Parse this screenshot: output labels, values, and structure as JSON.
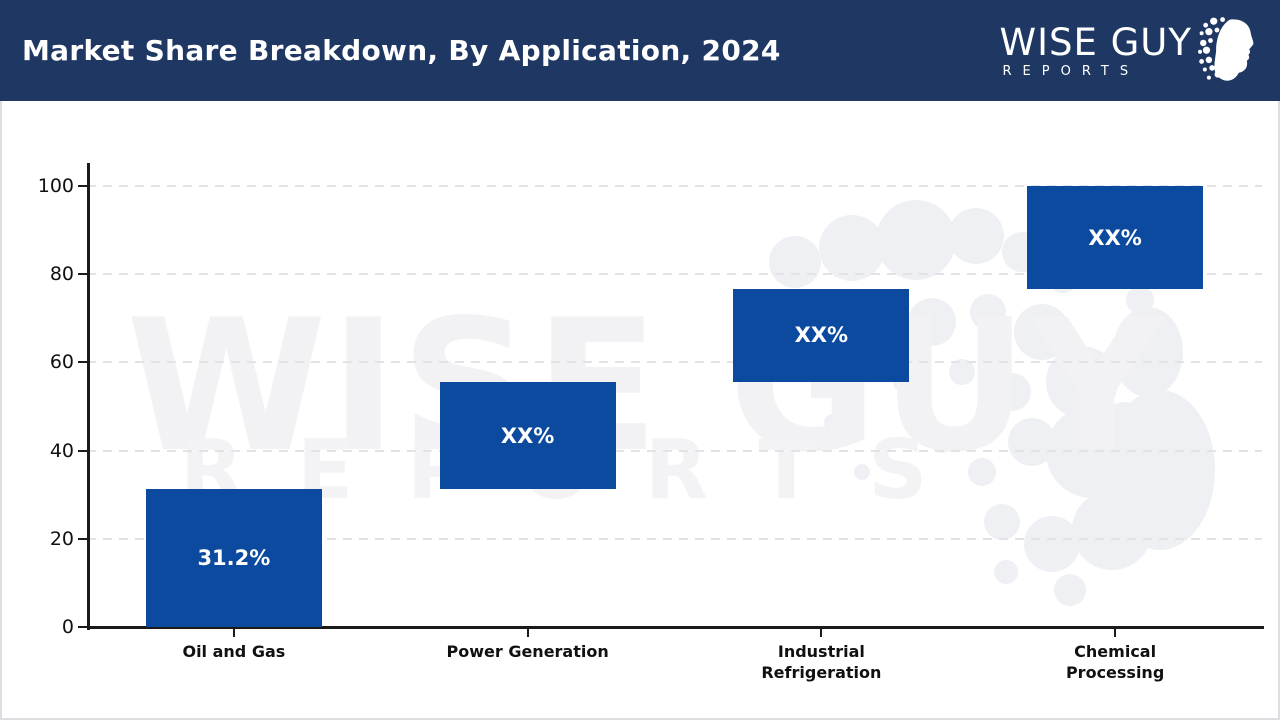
{
  "page": {
    "background": "#ffffff",
    "border_color": "#dcdce1"
  },
  "header": {
    "title": "Market Share Breakdown, By Application, 2024",
    "bg_color": "#1f3863",
    "logo": {
      "brand": "WISE GUY",
      "sub": "REPORTS"
    }
  },
  "watermark": {
    "brand": "WISE GUY",
    "sub": "REPORTS"
  },
  "chart_data": {
    "type": "bar",
    "subtype": "waterfall-floating-bars",
    "title": "Market Share Breakdown, By Application, 2024",
    "categories": [
      "Oil and Gas",
      "Power Generation",
      "Industrial\nRefrigeration",
      "Chemical\nProcessing"
    ],
    "series": [
      {
        "name": "Market Share (%)",
        "segments": [
          {
            "category": "Oil and Gas",
            "start": 0,
            "end": 31.2,
            "label": "31.2%"
          },
          {
            "category": "Power Generation",
            "start": 31.2,
            "end": 55.6,
            "label": "XX%"
          },
          {
            "category": "Industrial Refrigeration",
            "start": 55.6,
            "end": 76.6,
            "label": "XX%"
          },
          {
            "category": "Chemical Processing",
            "start": 76.6,
            "end": 100,
            "label": "XX%"
          }
        ]
      }
    ],
    "ylim": [
      0,
      100
    ],
    "yticks": [
      0,
      20,
      40,
      60,
      80,
      100
    ],
    "grid": "horizontal-dashed",
    "legend": "none",
    "bar_color": "#0c4a9f",
    "bar_label_color": "#ffffff",
    "axis_color": "#1a1a1a",
    "gridline_color": "#e3e3e7"
  }
}
